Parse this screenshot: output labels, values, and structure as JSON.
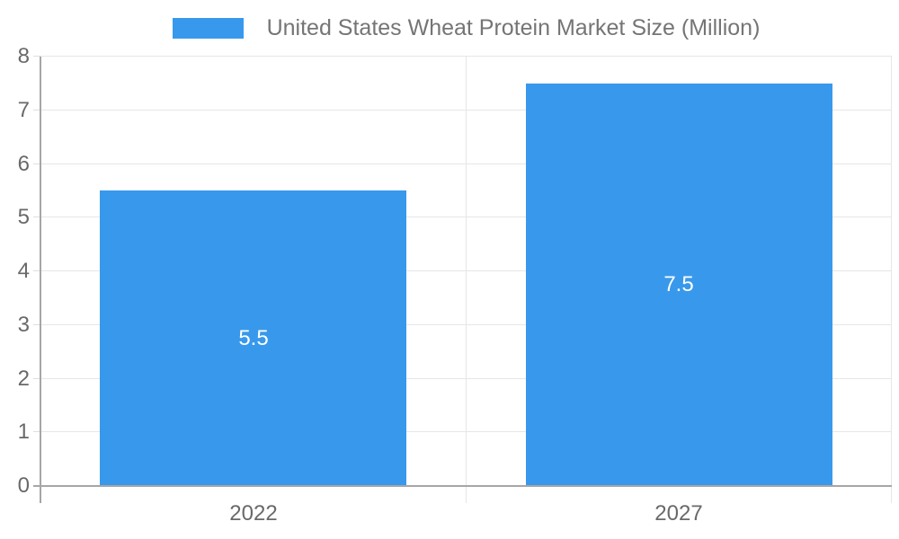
{
  "chart_data": {
    "type": "bar",
    "title": "United States Wheat Protein Market Size (Million)",
    "categories": [
      "2022",
      "2027"
    ],
    "series": [
      {
        "name": "United States Wheat Protein Market Size (Million)",
        "values": [
          5.5,
          7.5
        ]
      }
    ],
    "bar_labels": [
      "5.5",
      "7.5"
    ],
    "xlabel": "",
    "ylabel": "",
    "ylim": [
      0,
      8
    ],
    "yticks": [
      0,
      1,
      2,
      3,
      4,
      5,
      6,
      7,
      8
    ],
    "ytick_labels": [
      "0",
      "1",
      "2",
      "3",
      "4",
      "5",
      "6",
      "7",
      "8"
    ],
    "grid": true,
    "legend_position": "top-center"
  },
  "colors": {
    "bar": "#3899EC",
    "bar_label_text": "#ffffff",
    "gridline": "#e6e6e6",
    "tick": "#dedede",
    "axis_line": "#a6a6a6",
    "axis_text": "#696969",
    "legend_text": "#757575",
    "background": "#ffffff"
  }
}
